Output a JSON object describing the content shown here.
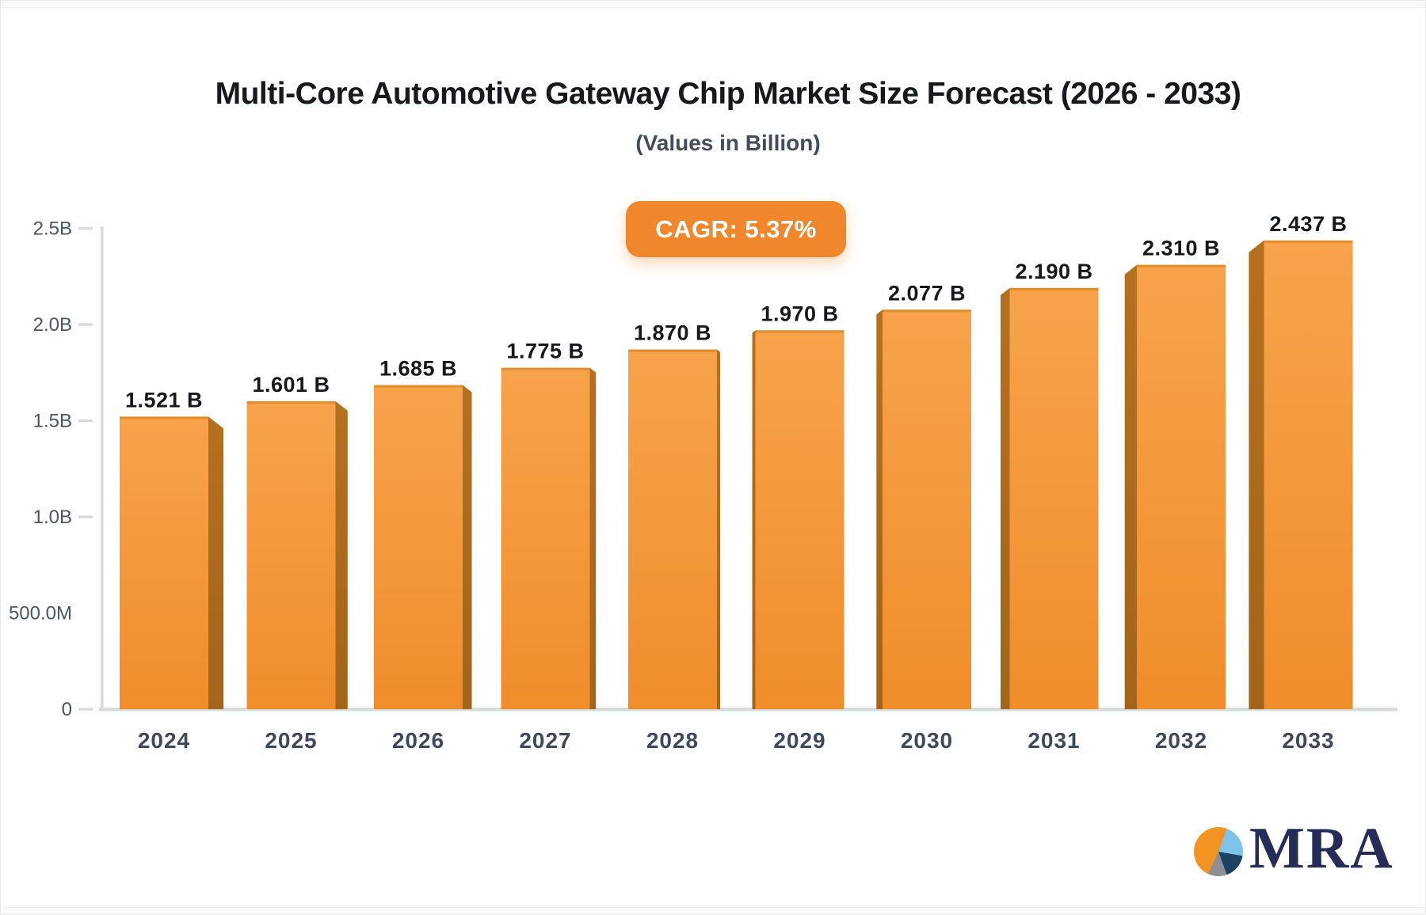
{
  "header": {
    "title": "Multi-Core Automotive Gateway Chip Market Size Forecast (2026 - 2033)",
    "subtitle": "(Values in Billion)"
  },
  "badge": {
    "label": "CAGR: 5.37%",
    "bg_color": "#F1872C",
    "text_color": "#FFFFFF"
  },
  "logo": {
    "text": "MRA",
    "text_color": "#252C59",
    "pie_segments": [
      {
        "color": "#F39321",
        "from": 0,
        "to": 20
      },
      {
        "color": "#7FC4E8",
        "from": 20,
        "to": 100
      },
      {
        "color": "#1E4265",
        "from": 100,
        "to": 160
      },
      {
        "color": "#8F9093",
        "from": 160,
        "to": 205
      },
      {
        "color": "#F39321",
        "from": 205,
        "to": 360
      }
    ]
  },
  "chart_data": {
    "type": "bar",
    "title": "Multi-Core Automotive Gateway Chip Market Size Forecast (2026 - 2033)",
    "subtitle": "(Values in Billion)",
    "annotation": "CAGR: 5.37%",
    "categories": [
      "2024",
      "2025",
      "2026",
      "2027",
      "2028",
      "2029",
      "2030",
      "2031",
      "2032",
      "2033"
    ],
    "values": [
      1.521,
      1.601,
      1.685,
      1.775,
      1.87,
      1.97,
      2.077,
      2.19,
      2.31,
      2.437
    ],
    "value_labels": [
      "1.521 B",
      "1.601 B",
      "1.685 B",
      "1.775 B",
      "1.870 B",
      "1.970 B",
      "2.077 B",
      "2.190 B",
      "2.310 B",
      "2.437 B"
    ],
    "unit": "Billion USD",
    "xlabel": "",
    "ylabel": "",
    "ylim": [
      0,
      2.5
    ],
    "y_ticks": [
      {
        "label": "0",
        "value": 0.0,
        "dash": true
      },
      {
        "label": "500.0M",
        "value": 0.5,
        "dash": false
      },
      {
        "label": "1.0B",
        "value": 1.0,
        "dash": true
      },
      {
        "label": "1.5B",
        "value": 1.5,
        "dash": true
      },
      {
        "label": "2.0B",
        "value": 2.0,
        "dash": true
      },
      {
        "label": "2.5B",
        "value": 2.5,
        "dash": true
      }
    ],
    "grid": false,
    "legend": null,
    "bar_style": "3d",
    "colors": {
      "bar_front_top": "#F7A34C",
      "bar_front_bottom": "#F08D2B",
      "bar_side": "#AC6B1E",
      "bar_top_edge": "#E18929",
      "axis_line": "#D9DBDF",
      "y_tick_label": "#4A5664",
      "x_tick_label": "#3E4A5B",
      "value_label": "#15181D"
    }
  }
}
